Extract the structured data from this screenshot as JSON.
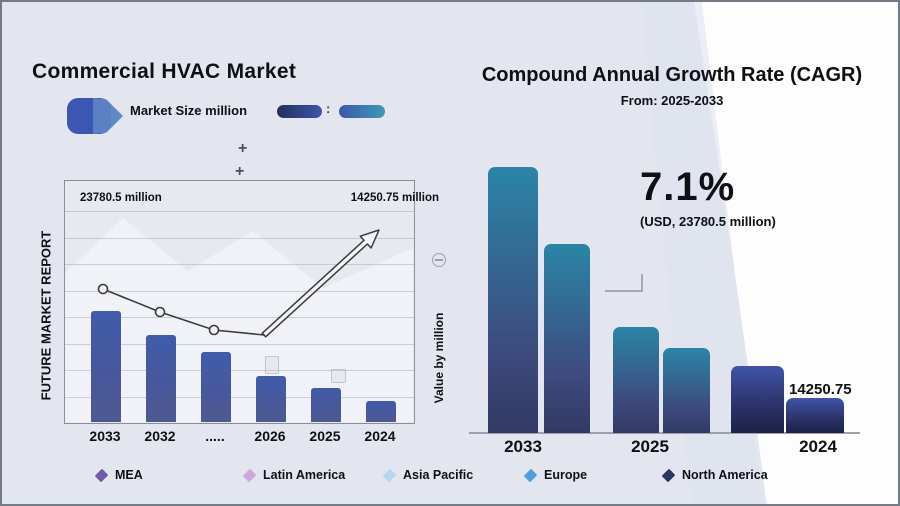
{
  "page": {
    "background": "#e3e6ef",
    "accent_blue": "#3f5caa",
    "accent_teal": "#2e86a6",
    "accent_navy": "#2a3560"
  },
  "left_panel": {
    "title": "Commercial HVAC Market",
    "series_label": "Market Size million",
    "ratio_separator": ":",
    "plus_top": "+",
    "plus_bottom": "+",
    "side_watermark": "FUTURE MARKET REPORT",
    "value_axis_label": "Value by million",
    "max_value_label": "23780.5 million",
    "min_value_label": "14250.75 million"
  },
  "right_panel": {
    "title": "Compound Annual Growth Rate (CAGR)",
    "subtitle": "From: 2025-2033",
    "cagr_value": "7.1%",
    "cagr_caption": "(USD, 23780.5 million)",
    "callout_value": "14250.75"
  },
  "region_legend": {
    "items": [
      {
        "label": "MEA",
        "color": "#6f5ba8"
      },
      {
        "label": "Latin America",
        "color": "#cfa7dd"
      },
      {
        "label": "Asia Pacific",
        "color": "#b5d9ec"
      },
      {
        "label": "Europe",
        "color": "#4f9fe0"
      },
      {
        "label": "North America",
        "color": "#2a3560"
      }
    ]
  },
  "chart_data": [
    {
      "type": "bar",
      "title": "Commercial HVAC Market - Market Size million",
      "categories": [
        "2033",
        "2032",
        ".....",
        "2026",
        "2025",
        "2024"
      ],
      "series": [
        {
          "name": "Market Size million",
          "relative_heights": [
            1.0,
            0.78,
            0.63,
            0.41,
            0.31,
            0.19
          ]
        }
      ],
      "known_values": {
        "2033": 23780.5,
        "2024": 14250.75
      },
      "annotations": [
        "23780.5 million",
        "14250.75 million"
      ],
      "ylabel": "Value by million",
      "grid": "horizontal",
      "legend_position": "top-left",
      "trend_overlay": "declining marker line over 2033-2026 then upward outlined arrow to top right"
    },
    {
      "type": "bar",
      "title": "Compound Annual Growth Rate (CAGR)",
      "subtitle": "From: 2025-2033",
      "categories": [
        "2033",
        "2025",
        "2024"
      ],
      "groups": [
        {
          "label": "2033",
          "bars": [
            {
              "relative_height": 1.0,
              "palette": "teal"
            },
            {
              "relative_height": 0.71,
              "palette": "teal"
            }
          ]
        },
        {
          "label": "2025",
          "bars": [
            {
              "relative_height": 0.4,
              "palette": "teal"
            },
            {
              "relative_height": 0.32,
              "palette": "teal"
            }
          ]
        },
        {
          "label": "2024",
          "bars": [
            {
              "relative_height": 0.25,
              "palette": "blue"
            },
            {
              "relative_height": 0.13,
              "palette": "blue"
            }
          ]
        }
      ],
      "cagr": "7.1%",
      "cagr_basis": "(USD, 23780.5 million)",
      "annotation": "14250.75",
      "grid": "off"
    }
  ]
}
